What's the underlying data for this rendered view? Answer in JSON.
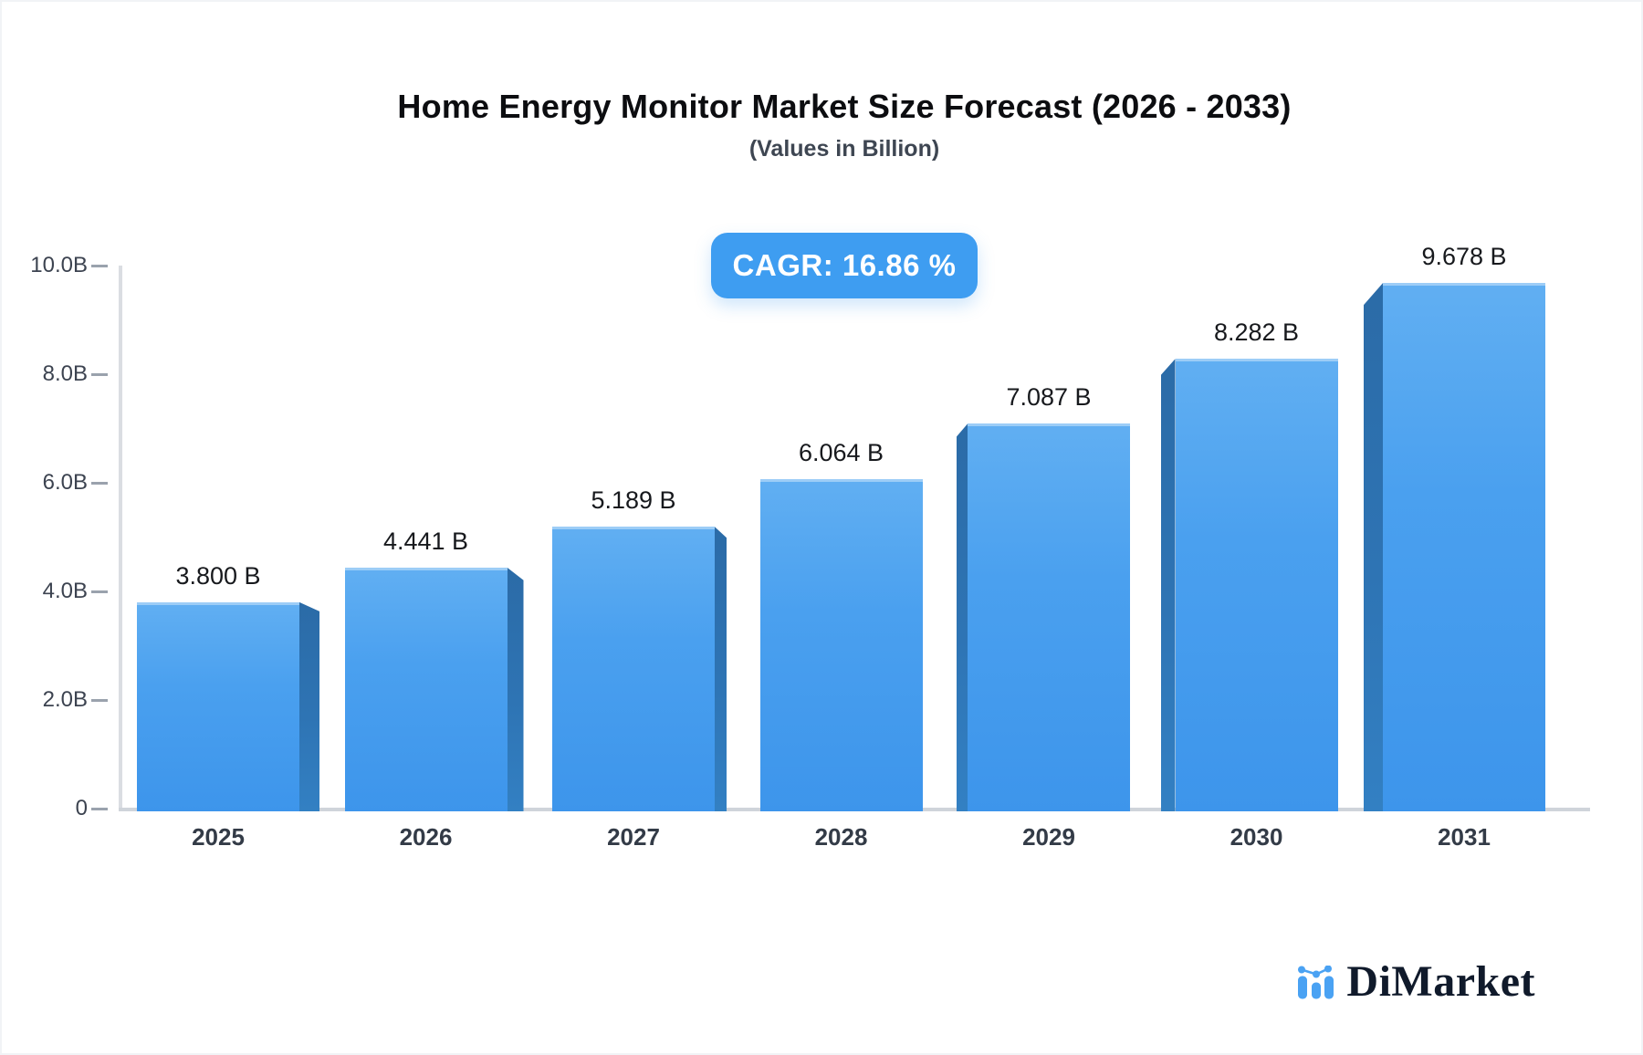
{
  "header": {
    "title": "Home Energy Monitor Market Size Forecast (2026 - 2033)",
    "subtitle": "(Values in Billion)"
  },
  "badge": {
    "label": "CAGR: 16.86 %",
    "color": "#3E9DF1",
    "text_color": "#FFFFFF"
  },
  "chart_data": {
    "type": "bar",
    "title": "Home Energy Monitor Market Size Forecast (2026 - 2033)",
    "subtitle": "(Values in Billion)",
    "cagr_label": "CAGR: 16.86 %",
    "categories": [
      "2025",
      "2026",
      "2027",
      "2028",
      "2029",
      "2030",
      "2031"
    ],
    "values": [
      3.8,
      4.441,
      5.189,
      6.064,
      7.087,
      8.282,
      9.678
    ],
    "value_labels": [
      "3.800 B",
      "4.441 B",
      "5.189 B",
      "6.064 B",
      "7.087 B",
      "8.282 B",
      "9.678 B"
    ],
    "y_ticks": [
      "10.0B",
      "8.0B",
      "6.0B",
      "4.0B",
      "2.0B",
      "0"
    ],
    "y_tick_values": [
      10,
      8,
      6,
      4,
      2,
      0
    ],
    "ylim": [
      0,
      10
    ],
    "xlabel": "",
    "ylabel": "",
    "grid": "off",
    "legend": "none",
    "unit": "Billion",
    "bar_face_color": "#459EEF",
    "bar_side_color": "#2E74B4"
  },
  "branding": {
    "name": "DiMarket",
    "icon": "mini-bar-chart-logo-icon",
    "icon_color": "#4AA2F3",
    "text_color": "#101A2B"
  }
}
